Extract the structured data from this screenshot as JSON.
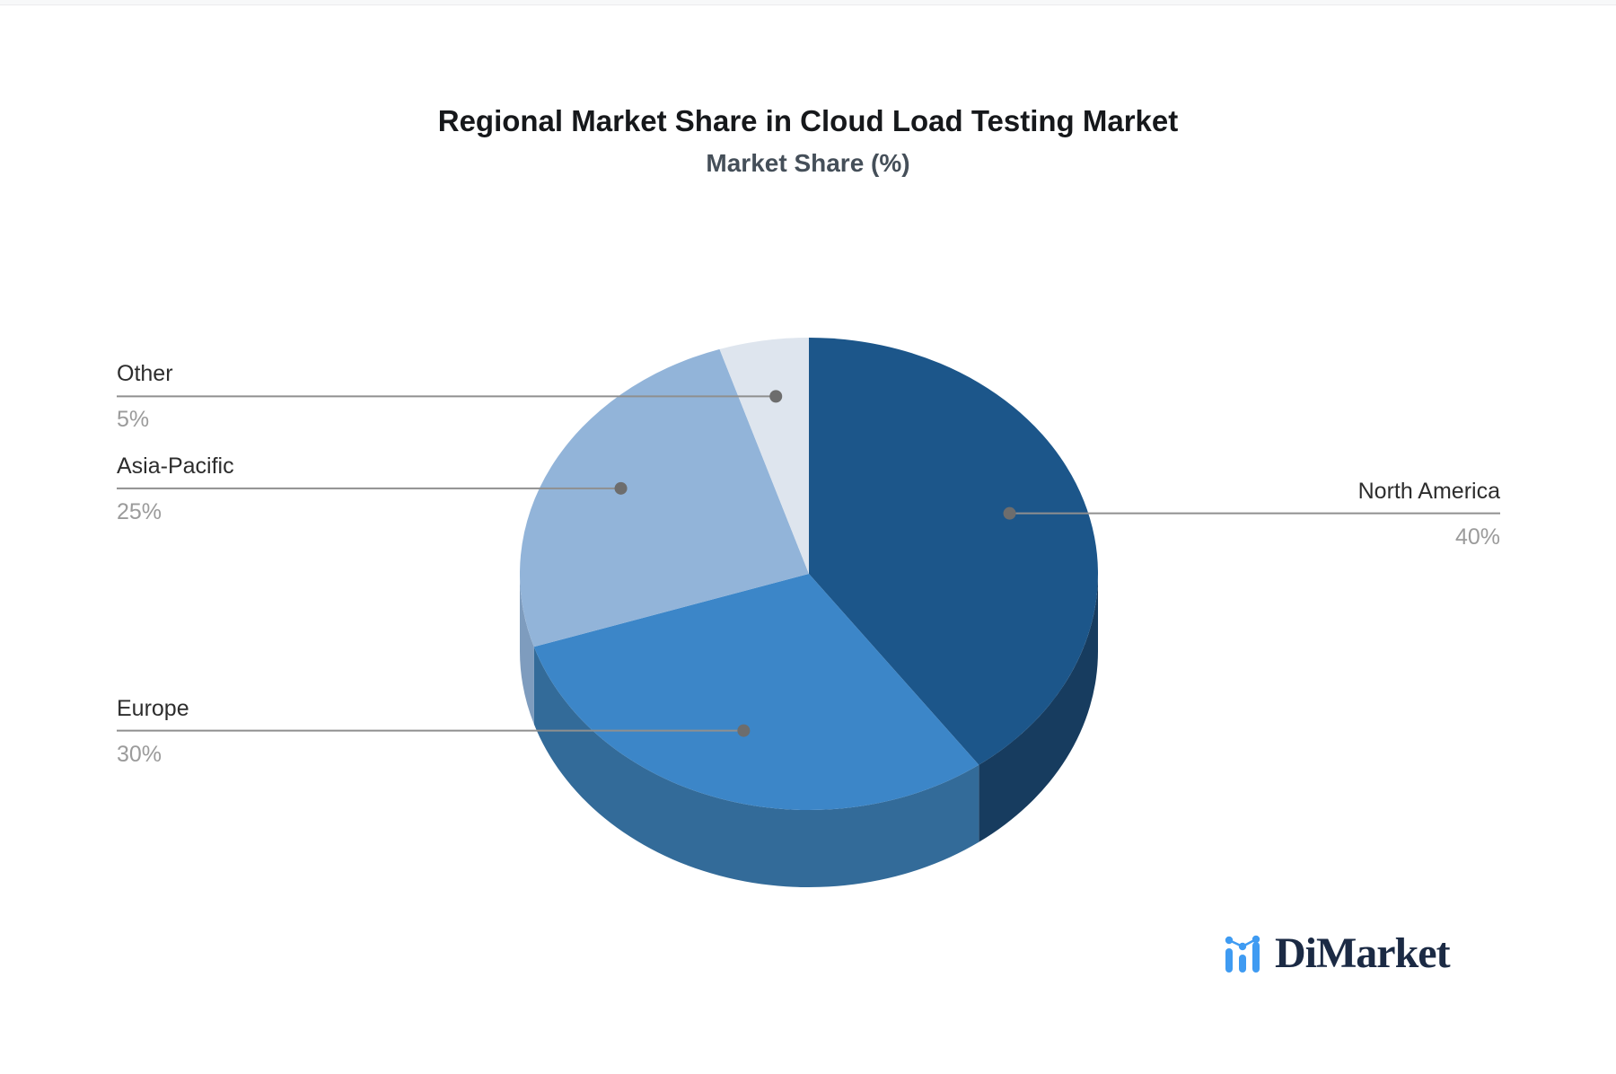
{
  "chart_data": {
    "type": "pie",
    "style": "3d",
    "title": "Regional Market Share in Cloud Load Testing Market",
    "subtitle": "Market Share (%)",
    "unit": "%",
    "direction": "clockwise",
    "start_angle_deg": 0,
    "legend_position": "callout-labels",
    "slices": [
      {
        "label": "North America",
        "value": 40,
        "display": "40%",
        "color": "#1c568a",
        "side_color": "#173c5f",
        "callout_side": "right"
      },
      {
        "label": "Europe",
        "value": 30,
        "display": "30%",
        "color": "#3c86c8",
        "side_color": "#336b99",
        "callout_side": "left"
      },
      {
        "label": "Asia-Pacific",
        "value": 25,
        "display": "25%",
        "color": "#92b4d9",
        "side_color": "#7e9cbe",
        "callout_side": "left"
      },
      {
        "label": "Other",
        "value": 5,
        "display": "5%",
        "color": "#dee5ee",
        "side_color": "#c3cdda",
        "callout_side": "left"
      }
    ]
  },
  "style_colors": {
    "title": "#16181b",
    "subtitle": "#454f59",
    "callout_label": "#2d2d2d",
    "callout_value": "#9b9b9b",
    "leader_line": "#8f8f8f",
    "leader_dot": "#6d6d6d",
    "background": "#ffffff",
    "top_strip": "#f7f8f9"
  },
  "branding": {
    "name": "DiMarket",
    "icon": "bar-line-chart-icon",
    "text_color": "#1b2a44",
    "icon_color": "#3f9bf2"
  }
}
